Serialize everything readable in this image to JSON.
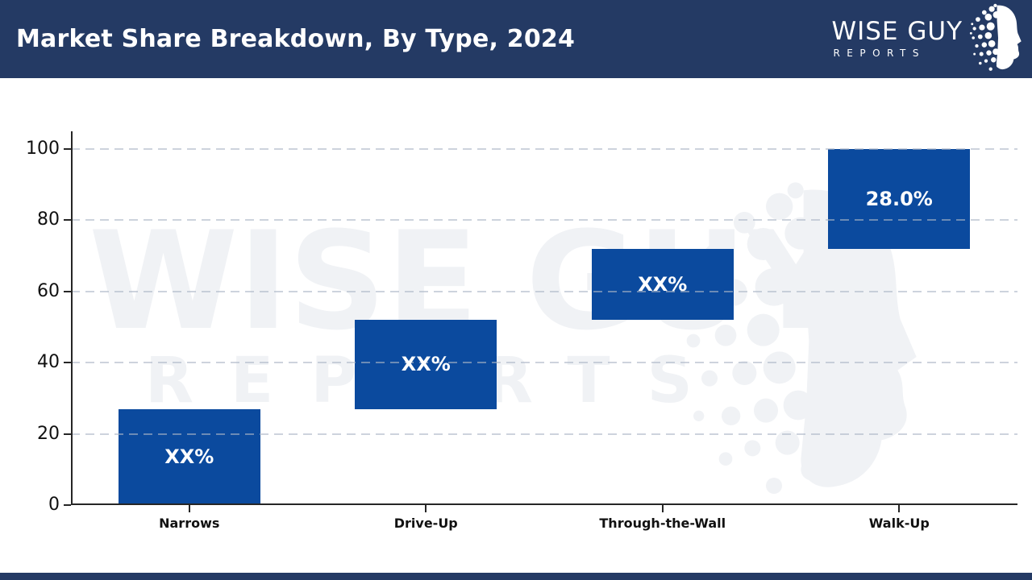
{
  "header": {
    "title": "Market Share Breakdown, By Type, 2024",
    "logo": {
      "line1": "WISE GUY",
      "line2": "REPORTS"
    }
  },
  "watermark": {
    "line1": "WISE GUY",
    "line2": "REPORTS"
  },
  "chart_data": {
    "type": "bar",
    "subtype": "waterfall",
    "title": "Market Share Breakdown, By Type, 2024",
    "xlabel": "",
    "ylabel": "",
    "categories": [
      "Narrows",
      "Drive-Up",
      "Through-the-Wall",
      "Walk-Up"
    ],
    "segments": [
      {
        "category": "Narrows",
        "start": 0,
        "end": 27,
        "value": 27,
        "label": "XX%"
      },
      {
        "category": "Drive-Up",
        "start": 27,
        "end": 52,
        "value": 25,
        "label": "XX%"
      },
      {
        "category": "Through-the-Wall",
        "start": 52,
        "end": 72,
        "value": 20,
        "label": "XX%"
      },
      {
        "category": "Walk-Up",
        "start": 72,
        "end": 100,
        "value": 28,
        "label": "28.0%"
      }
    ],
    "ylim": [
      0,
      105
    ],
    "yticks": [
      0,
      20,
      40,
      60,
      80,
      100
    ],
    "grid": "dashed-horizontal",
    "legend": "none",
    "bar_color": "#0b4a9e",
    "label_color": "#ffffff"
  },
  "colors": {
    "header_bg": "#243a64",
    "footer_bg": "#243a64",
    "bar": "#0b4a9e",
    "axis": "#262626",
    "grid_on_white": "#d7dbe2",
    "watermark": "#f0f2f5"
  }
}
